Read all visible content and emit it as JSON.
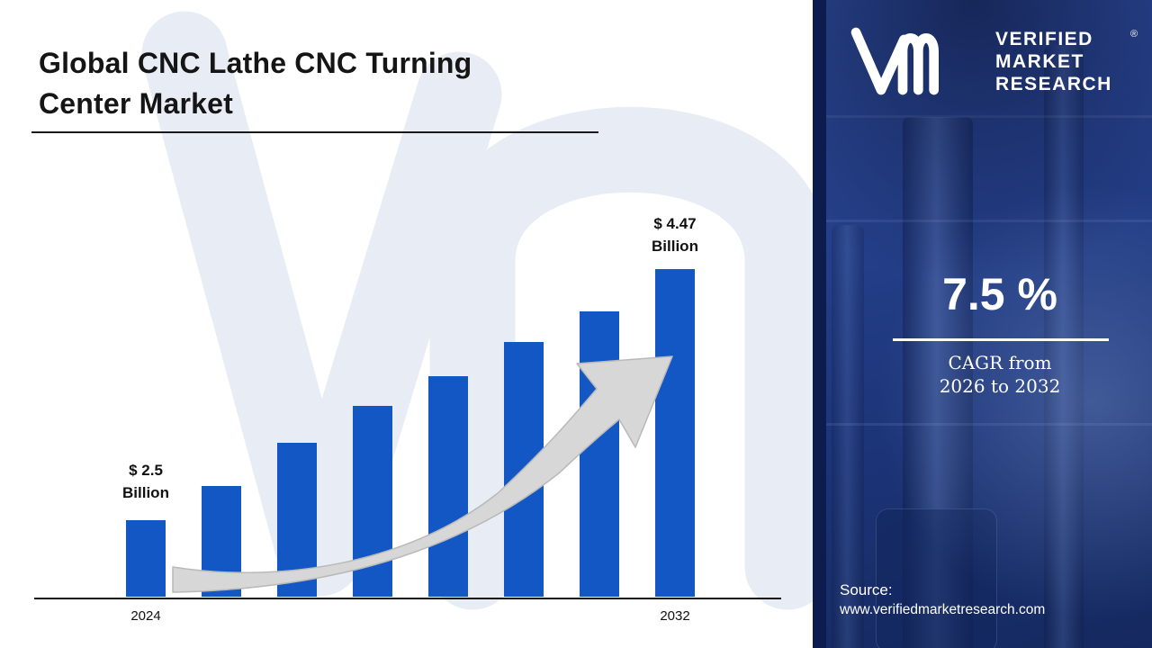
{
  "title": {
    "line1": "Global CNC Lathe CNC Turning",
    "line2": "Center Market"
  },
  "chart_data": {
    "type": "bar",
    "title": "Global CNC Lathe CNC Turning Center Market",
    "unit": "USD Billion",
    "categories": [
      "2024",
      "",
      "",
      "",
      "",
      "",
      "",
      "2032"
    ],
    "values": [
      2.5,
      2.77,
      3.11,
      3.4,
      3.63,
      3.9,
      4.14,
      4.47
    ],
    "value_labels": {
      "first": {
        "line1": "$ 2.5",
        "line2": "Billion"
      },
      "last": {
        "line1": "$ 4.47",
        "line2": "Billion"
      }
    },
    "x_axis_visible": true,
    "y_axis_visible": false,
    "grid": false,
    "legend": "none",
    "bar_color": "#1257c4"
  },
  "panel": {
    "logo": {
      "line1": "VERIFIED",
      "line2": "MARKET",
      "line3": "RESEARCH",
      "registered": "®"
    },
    "cagr_value": "7.5 %",
    "cagr_caption_line1": "CAGR from",
    "cagr_caption_line2": "2026 to 2032",
    "source_label": "Source:",
    "source_url": "www.verifiedmarketresearch.com"
  },
  "colors": {
    "bar_blue": "#1257c4",
    "panel_navy": "#0c1c4e",
    "panel_blue": "#23418c",
    "arrow_gray": "#d7d7d7",
    "watermark": "#e8ecf4"
  }
}
